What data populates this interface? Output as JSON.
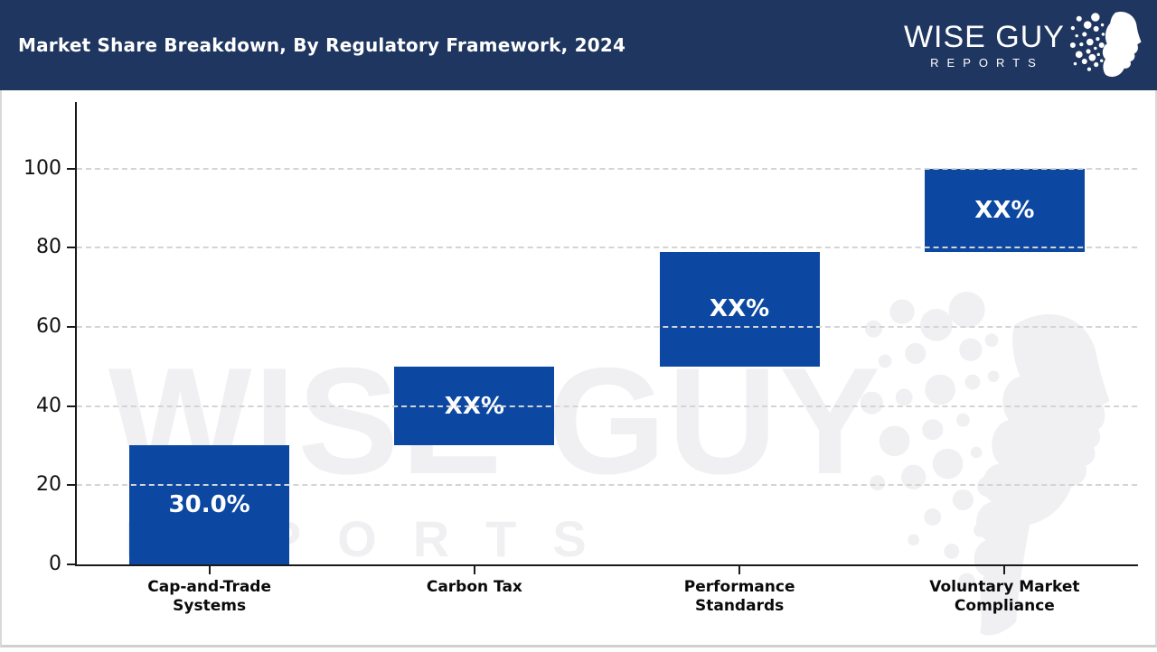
{
  "header": {
    "title": "Market Share Breakdown, By Regulatory Framework, 2024",
    "logo": {
      "line1": "WISE GUY",
      "line2": "REPORTS"
    }
  },
  "watermark": {
    "line1": "WISE GUY",
    "line2": "REPORTS"
  },
  "colors": {
    "header_bg": "#1f3660",
    "bar_blue": "#0c47a1",
    "gridline": "#d4d4d4",
    "watermark_gray": "#f0f0f3",
    "axis_black": "#1a1a1a"
  },
  "chart_data": {
    "type": "bar",
    "subtype": "waterfall",
    "title": "Market Share Breakdown, By Regulatory Framework, 2024",
    "categories": [
      "Cap-and-Trade Systems",
      "Carbon Tax",
      "Performance Standards",
      "Voluntary Market Compliance"
    ],
    "cat_labels": [
      "Cap-and-Trade\nSystems",
      "Carbon Tax",
      "Performance\nStandards",
      "Voluntary Market\nCompliance"
    ],
    "bars": [
      {
        "category": "Cap-and-Trade Systems",
        "label": "30.0%",
        "start": 0,
        "end": 30
      },
      {
        "category": "Carbon Tax",
        "label": "XX%",
        "start": 30,
        "end": 50
      },
      {
        "category": "Performance Standards",
        "label": "XX%",
        "start": 50,
        "end": 79
      },
      {
        "category": "Voluntary Market Compliance",
        "label": "XX%",
        "start": 79,
        "end": 100
      }
    ],
    "yticks": [
      0,
      20,
      40,
      60,
      80,
      100
    ],
    "ylim": [
      0,
      100
    ],
    "xlabel": "",
    "ylabel": "",
    "grid": "dashed-horizontal-over-bars",
    "legend": "none"
  }
}
